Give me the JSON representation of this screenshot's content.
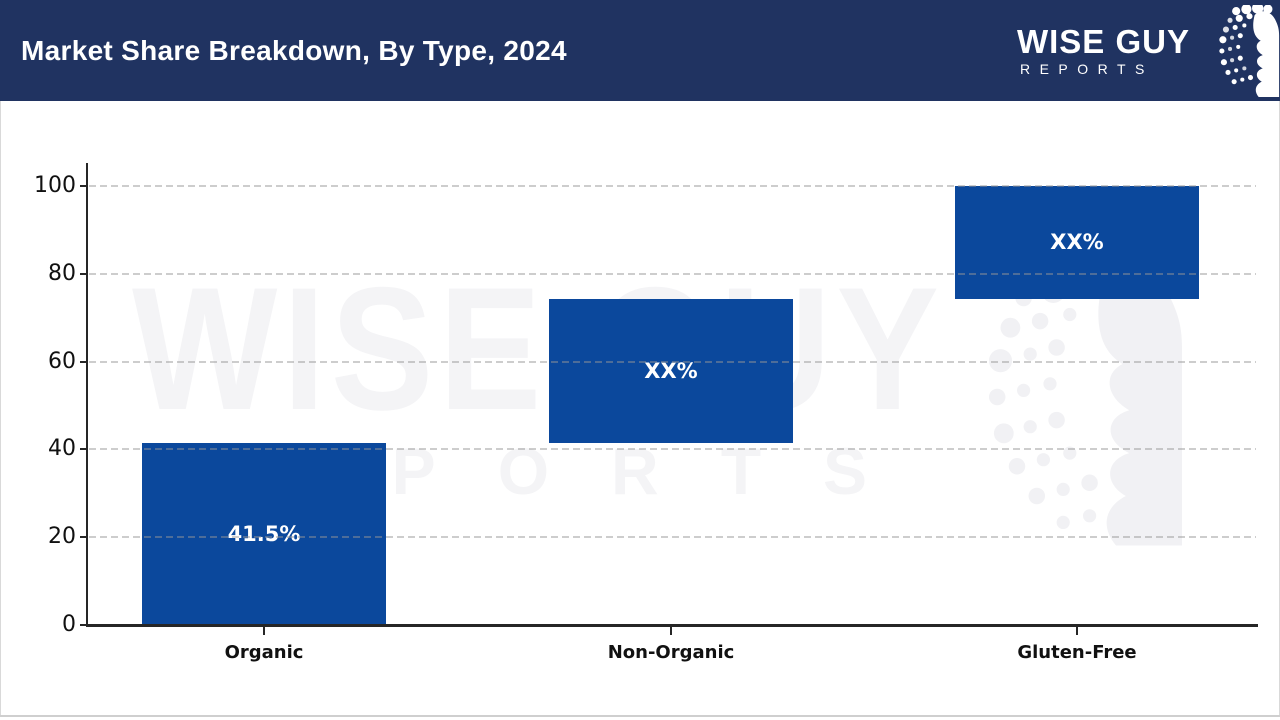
{
  "header": {
    "title": "Market Share Breakdown, By Type, 2024",
    "logo": {
      "line1": "WISE GUY",
      "line2": "REPORTS"
    }
  },
  "watermark": {
    "line1": "WISE GUY",
    "line2": "REPORTS"
  },
  "chart_data": {
    "type": "bar",
    "subtype": "floating-segment (waterfall-style) percentage bars",
    "title": "Market Share Breakdown, By Type, 2024",
    "categories": [
      "Organic",
      "Non-Organic",
      "Gluten-Free"
    ],
    "bars": [
      {
        "category": "Organic",
        "start": 0,
        "end": 41.5,
        "label": "41.5%"
      },
      {
        "category": "Non-Organic",
        "start": 41.5,
        "end": 74.3,
        "label": "XX%"
      },
      {
        "category": "Gluten-Free",
        "start": 74.3,
        "end": 100,
        "label": "XX%"
      }
    ],
    "xlabel": "",
    "ylabel": "",
    "yticks": [
      0,
      20,
      40,
      60,
      80,
      100
    ],
    "ylim": [
      0,
      100
    ],
    "grid": "horizontal dashed gridlines drawn above bars",
    "legend": "none",
    "bar_color": "#0b489c"
  },
  "colors": {
    "header_background": "#203361",
    "bar_blue": "#0b489c",
    "axis": "#262626",
    "tick_text": "#111111",
    "gridline": "rgba(150,150,150,0.48)",
    "watermark": "#f4f4f6",
    "bottom_rule": "#cfcfcf"
  }
}
